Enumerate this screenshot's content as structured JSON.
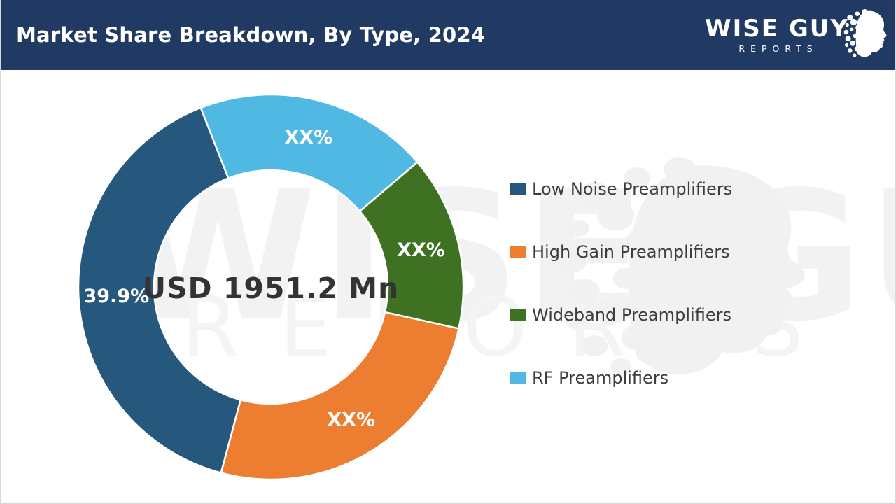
{
  "header": {
    "title": "Market Share Breakdown, By Type, 2024",
    "bg_color": "#213A63",
    "logo": {
      "line1": "WISE GUY",
      "line2": "REPORTS"
    }
  },
  "watermark": {
    "line1": "WISE GUY",
    "line2": "REPORTS"
  },
  "chart_data": {
    "type": "pie",
    "subtype": "donut",
    "title": "Market Share Breakdown, By Type, 2024",
    "center_label": "USD 1951.2 Mn",
    "start_angle_deg": 195,
    "inner_radius_ratio": 0.607,
    "segments": [
      {
        "name": "Low Noise Preamplifiers",
        "value_pct": 39.9,
        "display_label": "39.9%",
        "color": "#26577C"
      },
      {
        "name": "RF Preamplifiers",
        "value_pct": 19.7,
        "display_label": "XX%",
        "color": "#4FB9E3"
      },
      {
        "name": "Wideband Preamplifiers",
        "value_pct": 14.7,
        "display_label": "XX%",
        "color": "#3F7123"
      },
      {
        "name": "High Gain Preamplifiers",
        "value_pct": 25.7,
        "display_label": "XX%",
        "color": "#ED7D31"
      }
    ],
    "legend": [
      {
        "label": "Low Noise Preamplifiers",
        "color": "#26577C"
      },
      {
        "label": "High Gain Preamplifiers",
        "color": "#ED7D31"
      },
      {
        "label": "Wideband Preamplifiers",
        "color": "#3F7123"
      },
      {
        "label": "RF Preamplifiers",
        "color": "#4FB9E3"
      }
    ],
    "legend_position": "right"
  }
}
